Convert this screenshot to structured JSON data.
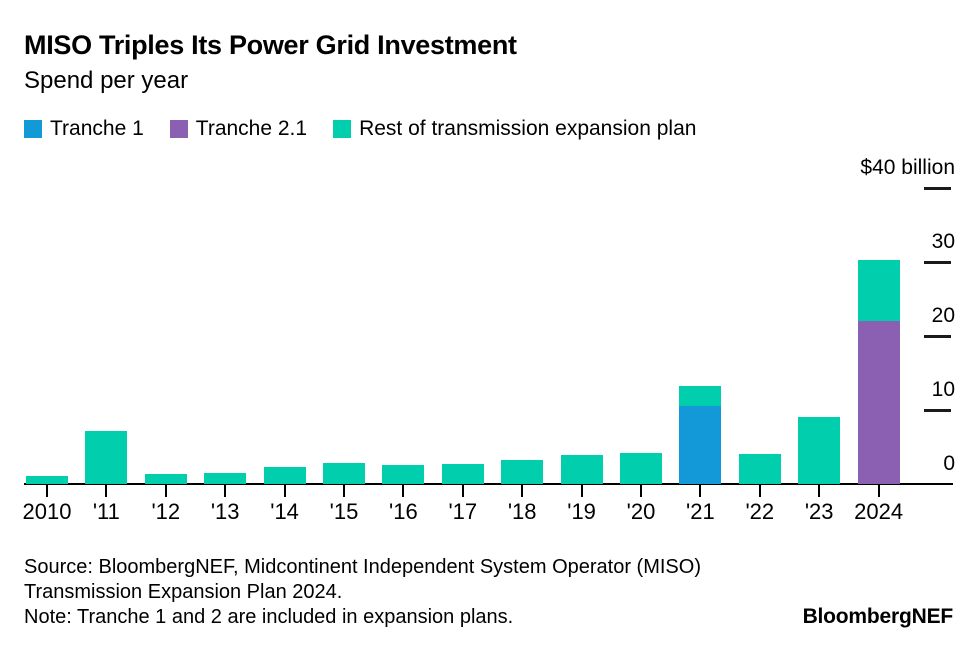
{
  "header": {
    "title": "MISO Triples Its Power Grid Investment",
    "subtitle": "Spend per year"
  },
  "legend": [
    {
      "label": "Tranche 1",
      "color": "#1499D8"
    },
    {
      "label": "Tranche 2.1",
      "color": "#8B60B2"
    },
    {
      "label": "Rest of transmission expansion plan",
      "color": "#00CEAC"
    }
  ],
  "chart_data": {
    "type": "bar",
    "stacked": true,
    "title": "MISO Triples Its Power Grid Investment",
    "subtitle": "Spend per year",
    "unit": "$ billion",
    "categories": [
      "2010",
      "'11",
      "'12",
      "'13",
      "'14",
      "'15",
      "'16",
      "'17",
      "'18",
      "'19",
      "'20",
      "'21",
      "'22",
      "'23",
      "2024"
    ],
    "series": [
      {
        "name": "Tranche 1",
        "color": "#1499D8",
        "values": [
          0,
          0,
          0,
          0,
          0,
          0,
          0,
          0,
          0,
          0,
          0,
          10.5,
          0,
          0,
          0
        ]
      },
      {
        "name": "Tranche 2.1",
        "color": "#8B60B2",
        "values": [
          0,
          0,
          0,
          0,
          0,
          0,
          0,
          0,
          0,
          0,
          0,
          0,
          0,
          0,
          22
        ]
      },
      {
        "name": "Rest of transmission expansion plan",
        "color": "#00CEAC",
        "values": [
          1.1,
          7.2,
          1.4,
          1.5,
          2.3,
          2.9,
          2.6,
          2.7,
          3.2,
          3.9,
          4.2,
          2.8,
          4.1,
          9.1,
          8.3
        ]
      }
    ],
    "ylim": [
      0,
      40
    ],
    "yticks": [
      {
        "value": 0,
        "label": "0"
      },
      {
        "value": 10,
        "label": "10"
      },
      {
        "value": 20,
        "label": "20"
      },
      {
        "value": 30,
        "label": "30"
      },
      {
        "value": 40,
        "label": "$40 billion"
      }
    ],
    "grid": false,
    "legend_position": "top"
  },
  "footer": {
    "source_lines": [
      "Source: BloombergNEF, Midcontinent Independent System Operator (MISO)",
      "Transmission Expansion Plan 2024.",
      "Note: Tranche 1 and 2 are included in expansion plans."
    ],
    "brand": "BloombergNEF"
  }
}
